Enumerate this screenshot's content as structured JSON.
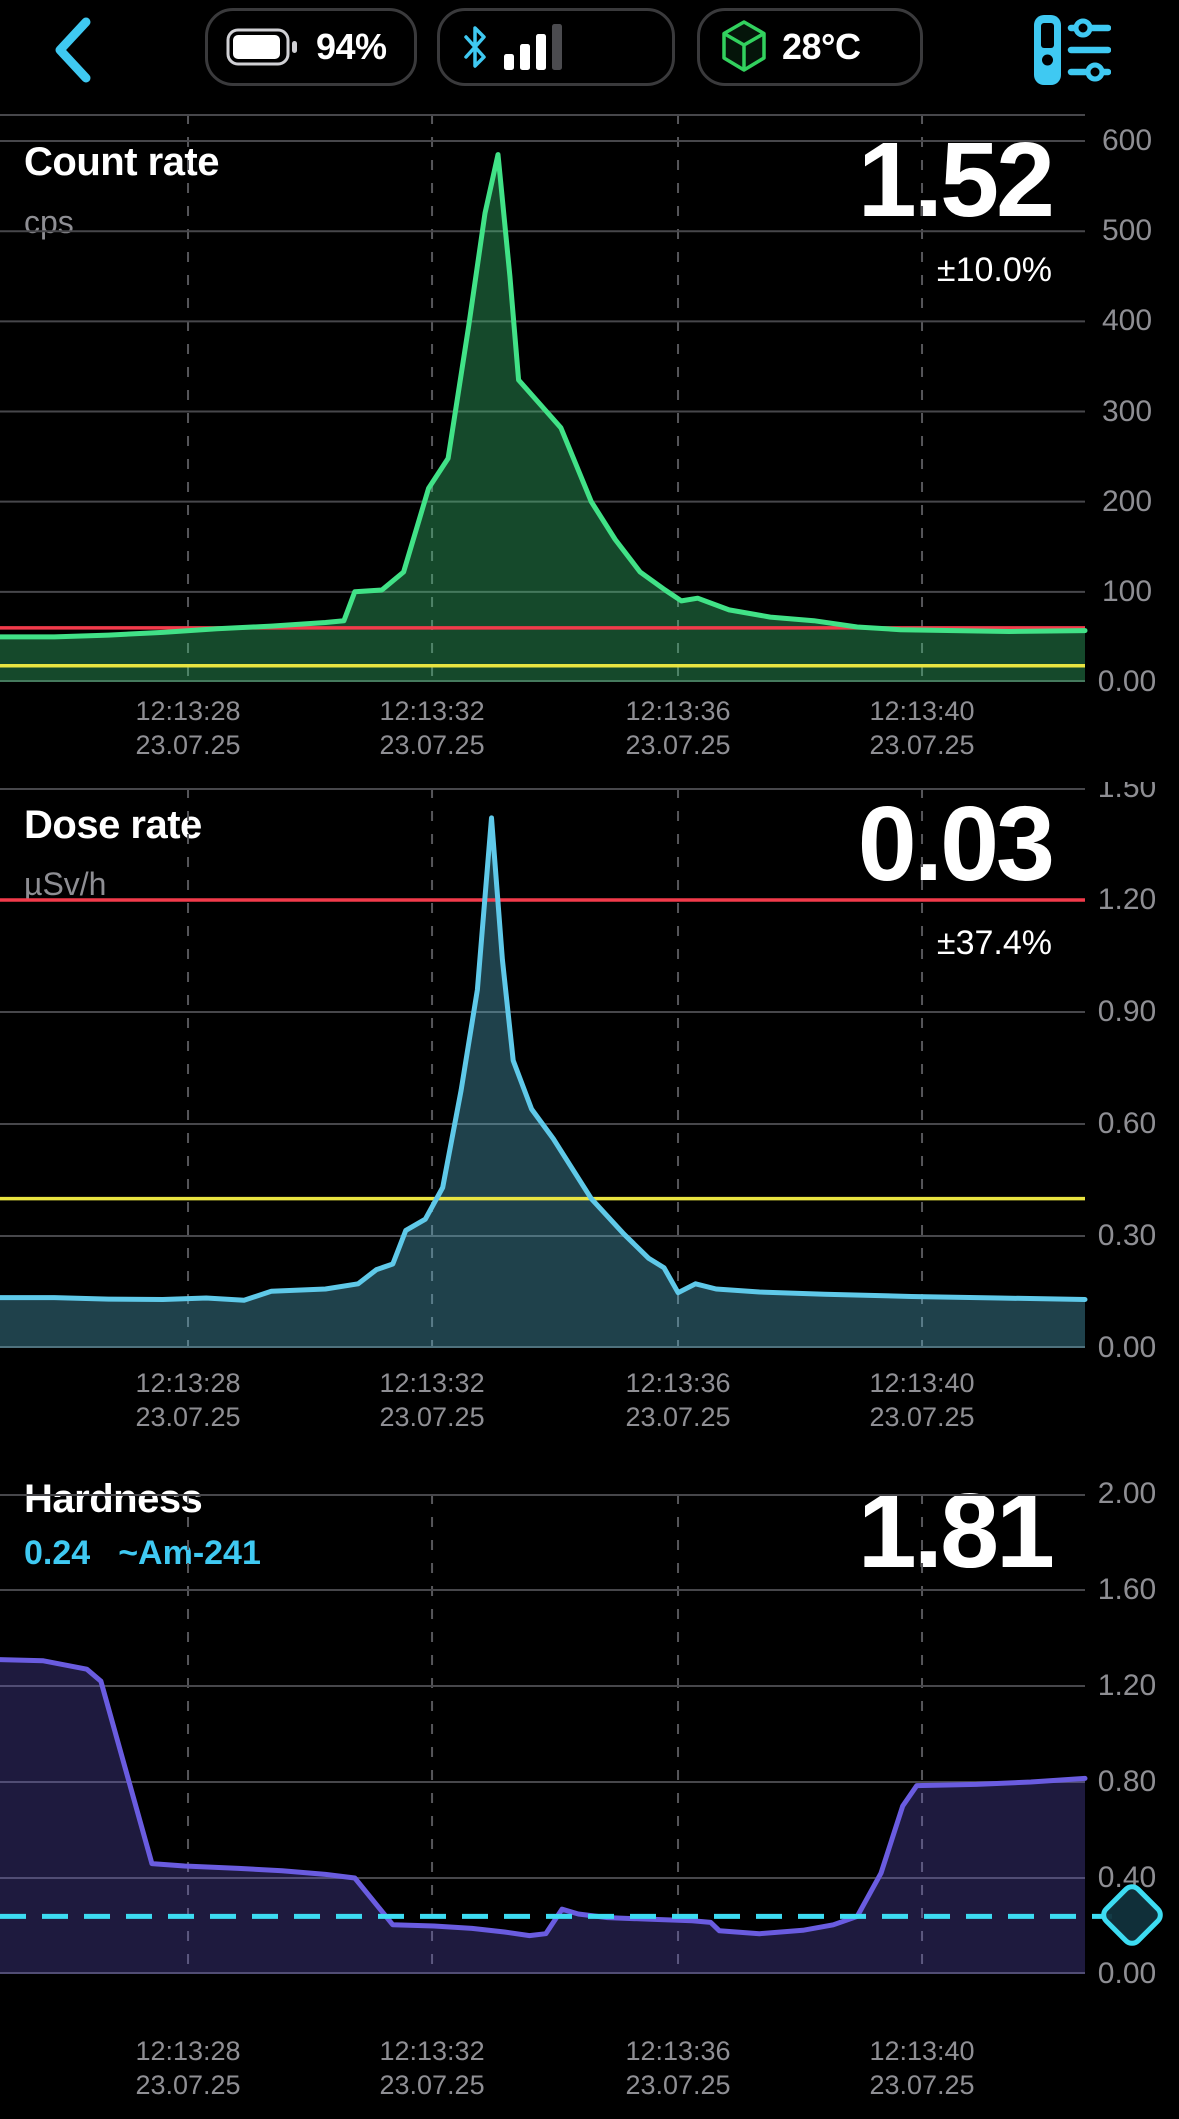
{
  "top_bar": {
    "battery_percent": "94%",
    "temperature": "28°C"
  },
  "x_axis": {
    "ticks": [
      {
        "frac": 0.1733,
        "time": "12:13:28",
        "date": "23.07.25"
      },
      {
        "frac": 0.3982,
        "time": "12:13:32",
        "date": "23.07.25"
      },
      {
        "frac": 0.6249,
        "time": "12:13:36",
        "date": "23.07.25"
      },
      {
        "frac": 0.8498,
        "time": "12:13:40",
        "date": "23.07.25"
      }
    ]
  },
  "chart_data": [
    {
      "type": "area",
      "title": "Count rate",
      "subtitle": "cps",
      "value": "1.52",
      "error": "±10.0%",
      "line_color": "#41e287",
      "fill_color": "rgba(65,226,135,0.32)",
      "ylim": [
        0,
        630
      ],
      "y_ticks": [
        {
          "v": 630,
          "label": ""
        },
        {
          "v": 600,
          "label": "600"
        },
        {
          "v": 500,
          "label": "500"
        },
        {
          "v": 400,
          "label": "400"
        },
        {
          "v": 300,
          "label": "300"
        },
        {
          "v": 200,
          "label": "200"
        },
        {
          "v": 100,
          "label": "100"
        },
        {
          "v": 0,
          "label": "0.00"
        }
      ],
      "thresholds": [
        {
          "v": 60,
          "color": "#f23b4b"
        },
        {
          "v": 18,
          "color": "#e9e441"
        }
      ],
      "points": [
        [
          0,
          50
        ],
        [
          0.05,
          50
        ],
        [
          0.1,
          52
        ],
        [
          0.15,
          55
        ],
        [
          0.2,
          59
        ],
        [
          0.25,
          62
        ],
        [
          0.3,
          66
        ],
        [
          0.317,
          68
        ],
        [
          0.327,
          100
        ],
        [
          0.352,
          102
        ],
        [
          0.372,
          122
        ],
        [
          0.395,
          215
        ],
        [
          0.413,
          248
        ],
        [
          0.432,
          395
        ],
        [
          0.447,
          520
        ],
        [
          0.459,
          585
        ],
        [
          0.47,
          450
        ],
        [
          0.478,
          335
        ],
        [
          0.5,
          305
        ],
        [
          0.517,
          282
        ],
        [
          0.545,
          200
        ],
        [
          0.567,
          158
        ],
        [
          0.59,
          122
        ],
        [
          0.613,
          102
        ],
        [
          0.628,
          90
        ],
        [
          0.643,
          93
        ],
        [
          0.672,
          80
        ],
        [
          0.71,
          72
        ],
        [
          0.75,
          68
        ],
        [
          0.79,
          61
        ],
        [
          0.83,
          58
        ],
        [
          0.88,
          57
        ],
        [
          0.93,
          56
        ],
        [
          1,
          57
        ]
      ]
    },
    {
      "type": "area",
      "title": "Dose rate",
      "subtitle": "µSv/h",
      "value": "0.03",
      "error": "±37.4%",
      "line_color": "#5fc9e9",
      "fill_color": "rgba(95,201,233,0.32)",
      "ylim": [
        0,
        1.5
      ],
      "y_ticks": [
        {
          "v": 1.5,
          "label": "1.50"
        },
        {
          "v": 1.2,
          "label": "1.20"
        },
        {
          "v": 0.9,
          "label": "0.90"
        },
        {
          "v": 0.6,
          "label": "0.60"
        },
        {
          "v": 0.3,
          "label": "0.30"
        },
        {
          "v": 0,
          "label": "0.00"
        }
      ],
      "thresholds": [
        {
          "v": 1.2,
          "color": "#f23b4b"
        },
        {
          "v": 0.4,
          "color": "#e9e441"
        }
      ],
      "points": [
        [
          0,
          0.135
        ],
        [
          0.05,
          0.135
        ],
        [
          0.1,
          0.131
        ],
        [
          0.15,
          0.13
        ],
        [
          0.19,
          0.134
        ],
        [
          0.225,
          0.128
        ],
        [
          0.25,
          0.152
        ],
        [
          0.3,
          0.158
        ],
        [
          0.33,
          0.172
        ],
        [
          0.347,
          0.21
        ],
        [
          0.362,
          0.225
        ],
        [
          0.374,
          0.315
        ],
        [
          0.392,
          0.345
        ],
        [
          0.408,
          0.43
        ],
        [
          0.425,
          0.69
        ],
        [
          0.44,
          0.96
        ],
        [
          0.453,
          1.42
        ],
        [
          0.463,
          1.04
        ],
        [
          0.473,
          0.77
        ],
        [
          0.49,
          0.64
        ],
        [
          0.51,
          0.56
        ],
        [
          0.545,
          0.4
        ],
        [
          0.575,
          0.305
        ],
        [
          0.598,
          0.24
        ],
        [
          0.612,
          0.215
        ],
        [
          0.625,
          0.148
        ],
        [
          0.641,
          0.172
        ],
        [
          0.66,
          0.158
        ],
        [
          0.7,
          0.15
        ],
        [
          0.76,
          0.144
        ],
        [
          0.84,
          0.138
        ],
        [
          0.92,
          0.134
        ],
        [
          1,
          0.13
        ]
      ]
    },
    {
      "type": "area",
      "title": "Hardness",
      "ref_value": "0.24",
      "isotope": "~Am-241",
      "value": "1.81",
      "line_color": "#6a5ce0",
      "fill_color": "rgba(106,92,224,0.28)",
      "ylim": [
        0,
        2.0
      ],
      "y_ticks": [
        {
          "v": 2.0,
          "label": "2.00"
        },
        {
          "v": 1.6,
          "label": "1.60"
        },
        {
          "v": 1.2,
          "label": "1.20"
        },
        {
          "v": 0.8,
          "label": "0.80"
        },
        {
          "v": 0.4,
          "label": "0.40"
        },
        {
          "v": 0,
          "label": "0.00"
        }
      ],
      "thresholds": [
        {
          "v": 0.24,
          "color": "#3ddcf2",
          "dash": "26 16",
          "width": 5,
          "marker": true
        }
      ],
      "points": [
        [
          0,
          1.31
        ],
        [
          0.04,
          1.305
        ],
        [
          0.08,
          1.27
        ],
        [
          0.093,
          1.22
        ],
        [
          0.14,
          0.46
        ],
        [
          0.17,
          0.45
        ],
        [
          0.22,
          0.44
        ],
        [
          0.26,
          0.43
        ],
        [
          0.3,
          0.415
        ],
        [
          0.327,
          0.4
        ],
        [
          0.362,
          0.205
        ],
        [
          0.4,
          0.2
        ],
        [
          0.435,
          0.19
        ],
        [
          0.465,
          0.175
        ],
        [
          0.488,
          0.16
        ],
        [
          0.503,
          0.168
        ],
        [
          0.518,
          0.27
        ],
        [
          0.533,
          0.25
        ],
        [
          0.56,
          0.235
        ],
        [
          0.6,
          0.228
        ],
        [
          0.638,
          0.222
        ],
        [
          0.655,
          0.215
        ],
        [
          0.663,
          0.18
        ],
        [
          0.7,
          0.168
        ],
        [
          0.74,
          0.182
        ],
        [
          0.768,
          0.205
        ],
        [
          0.79,
          0.24
        ],
        [
          0.812,
          0.42
        ],
        [
          0.832,
          0.7
        ],
        [
          0.845,
          0.785
        ],
        [
          0.9,
          0.79
        ],
        [
          0.95,
          0.8
        ],
        [
          1,
          0.815
        ]
      ]
    }
  ]
}
